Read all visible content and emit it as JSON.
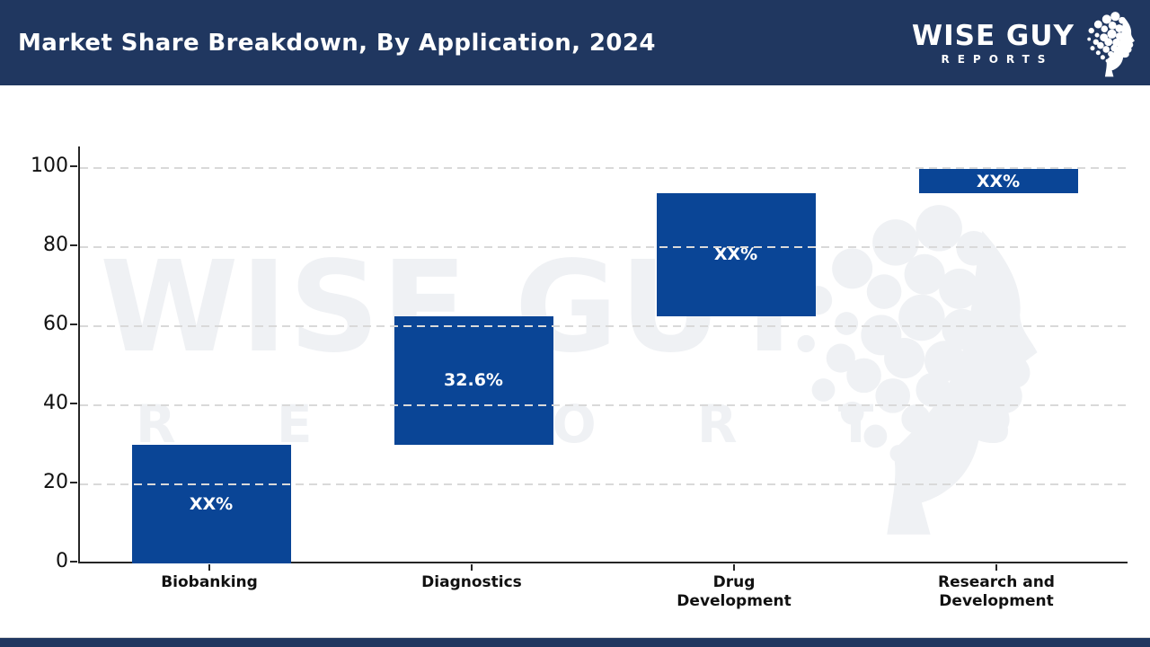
{
  "header": {
    "title": "Market Share Breakdown, By Application, 2024"
  },
  "logo": {
    "line1": "WISE GUY",
    "line2": "REPORTS"
  },
  "watermark": {
    "line1": "WISE GUY",
    "line2": "R E P O R T S"
  },
  "colors": {
    "header_bg": "#203760",
    "footer_bg": "#203760",
    "bar": "#0a4596",
    "grid": "#d9d9d9",
    "axis": "#262626",
    "watermark": "#eff1f4"
  },
  "chart_data": {
    "type": "bar",
    "subtype": "waterfall-floating-bars",
    "title": "Market Share Breakdown, By Application, 2024",
    "xlabel": "",
    "ylabel": "",
    "ylim": [
      0,
      100
    ],
    "yticks": [
      0,
      20,
      40,
      60,
      80,
      100
    ],
    "grid": "dashed-horizontal",
    "legend": "none",
    "categories": [
      "Biobanking",
      "Diagnostics",
      "Drug Development",
      "Research and Development"
    ],
    "segments": [
      {
        "category": "Biobanking",
        "start": 0,
        "end": 30,
        "value_label": "XX%"
      },
      {
        "category": "Diagnostics",
        "start": 30,
        "end": 62.6,
        "value_label": "32.6%"
      },
      {
        "category": "Drug Development",
        "start": 62.6,
        "end": 93.6,
        "value_label": "XX%"
      },
      {
        "category": "Research and Development",
        "start": 93.6,
        "end": 99.8,
        "value_label": "XX%"
      }
    ]
  }
}
